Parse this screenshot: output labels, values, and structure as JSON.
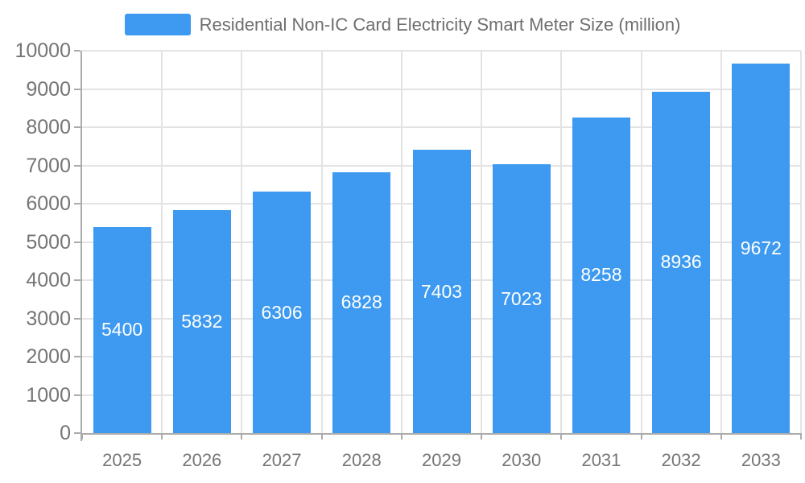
{
  "chart_data": {
    "type": "bar",
    "title": "Residential Non-IC Card Electricity Smart Meter Size (million)",
    "legend_entries": [
      "Residential Non-IC Card Electricity Smart Meter Size (million)"
    ],
    "legend_position": "top-center",
    "categories": [
      "2025",
      "2026",
      "2027",
      "2028",
      "2029",
      "2030",
      "2031",
      "2032",
      "2033"
    ],
    "series": [
      {
        "name": "Residential Non-IC Card Electricity Smart Meter Size (million)",
        "values": [
          5400,
          5832,
          6306,
          6828,
          7403,
          7023,
          8258,
          8936,
          9672
        ]
      }
    ],
    "data_labels_shown": true,
    "xlabel": "",
    "ylabel": "",
    "ylim": [
      0,
      10000
    ],
    "yticks": [
      0,
      1000,
      2000,
      3000,
      4000,
      5000,
      6000,
      7000,
      8000,
      9000,
      10000
    ],
    "grid": true,
    "colors": {
      "bar": "#3D9AF0",
      "bar_value_label": "#ffffff",
      "gridline": "#e3e3e3",
      "axis_line": "#ababab",
      "tick_label": "#757575",
      "legend_text": "#6e6e6e",
      "background": "#ffffff"
    }
  }
}
